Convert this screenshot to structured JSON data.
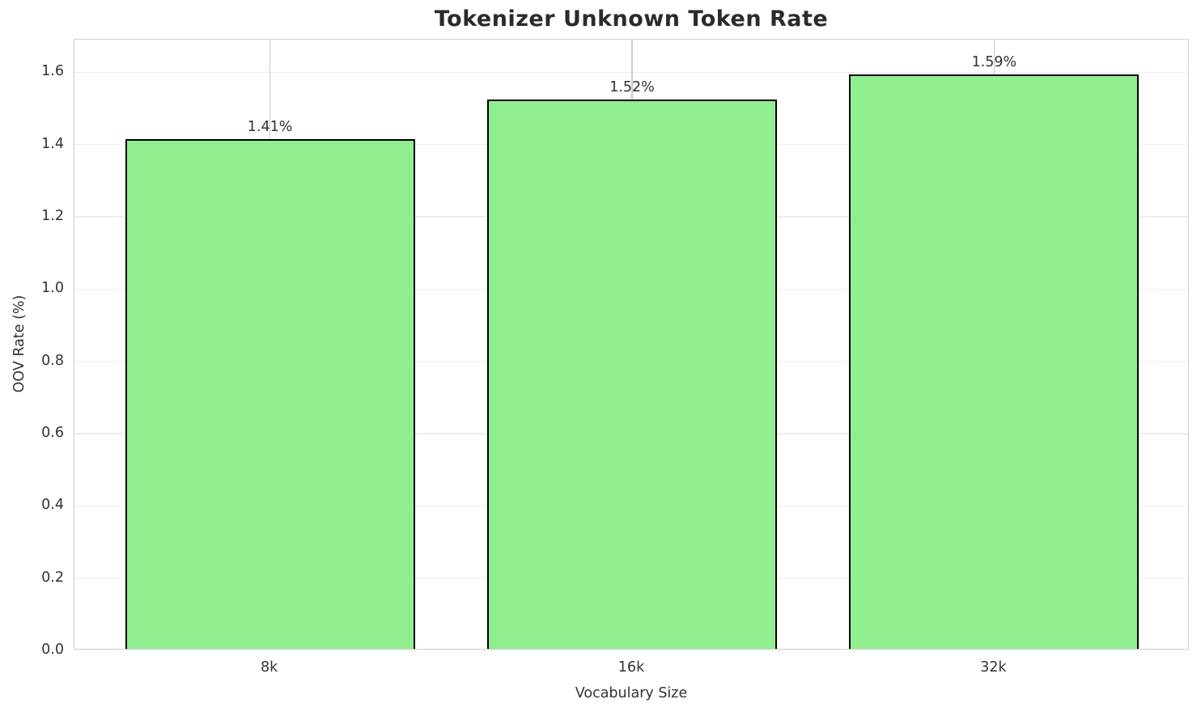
{
  "chart_data": {
    "type": "bar",
    "title": "Tokenizer Unknown Token Rate",
    "categories": [
      "8k",
      "16k",
      "32k"
    ],
    "values": [
      1.41,
      1.52,
      1.59
    ],
    "value_labels": [
      "1.41%",
      "1.52%",
      "1.59%"
    ],
    "xlabel": "Vocabulary Size",
    "ylabel": "OOV Rate (%)",
    "yticks": [
      0.0,
      0.2,
      0.4,
      0.6,
      0.8,
      1.0,
      1.2,
      1.4,
      1.6
    ],
    "ytick_labels": [
      "0.0",
      "0.2",
      "0.4",
      "0.6",
      "0.8",
      "1.0",
      "1.2",
      "1.4",
      "1.6"
    ],
    "ylim": [
      0,
      1.69
    ],
    "xlim": [
      -0.54,
      2.54
    ],
    "bar_width_units": 0.8,
    "grid": true,
    "legend": "none",
    "colors": {
      "bar_fill": "#90EE90",
      "bar_edge": "#000000",
      "spine": "#cfcfcf",
      "h_grid": "#ececec",
      "v_grid": "#cccccc",
      "title_text": "#2b2b2b",
      "tick_text": "#333333",
      "background": "#ffffff"
    }
  }
}
